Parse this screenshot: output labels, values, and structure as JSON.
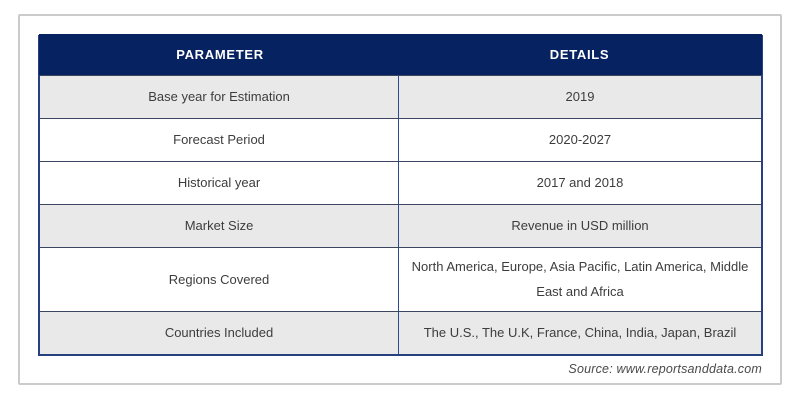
{
  "table": {
    "headers": [
      "PARAMETER",
      "DETAILS"
    ],
    "rows": [
      {
        "parameter": "Base year for Estimation",
        "details": "2019",
        "shaded": true
      },
      {
        "parameter": "Forecast Period",
        "details": "2020-2027",
        "shaded": false
      },
      {
        "parameter": "Historical year",
        "details": "2017 and 2018",
        "shaded": false
      },
      {
        "parameter": "Market Size",
        "details": "Revenue in USD million",
        "shaded": true
      },
      {
        "parameter": "Regions Covered",
        "details": "North America, Europe, Asia Pacific, Latin America, Middle East and Africa",
        "shaded": false
      },
      {
        "parameter": "Countries Included",
        "details": "The U.S., The  U.K, France, China, India, Japan, Brazil",
        "shaded": true
      }
    ]
  },
  "source": {
    "label": "Source: www.reportsanddata.com"
  },
  "colors": {
    "header_bg": "#062260",
    "header_text": "#ffffff",
    "shaded_row_bg": "#e9e9e9",
    "row_bg": "#ffffff",
    "row_border": "#3c4660",
    "table_border": "#27417e",
    "frame_border": "#cbcbcb",
    "cell_text": "#3d3d3d",
    "source_text": "#4a4a4a"
  },
  "chart_data": {
    "type": "table",
    "title": "",
    "columns": [
      "PARAMETER",
      "DETAILS"
    ],
    "rows": [
      [
        "Base year for Estimation",
        "2019"
      ],
      [
        "Forecast Period",
        "2020-2027"
      ],
      [
        "Historical year",
        "2017 and 2018"
      ],
      [
        "Market Size",
        "Revenue in USD million"
      ],
      [
        "Regions Covered",
        "North America, Europe, Asia Pacific, Latin America, Middle East and Africa"
      ],
      [
        "Countries Included",
        "The U.S., The  U.K, France, China, India, Japan, Brazil"
      ]
    ],
    "source": "Source: www.reportsanddata.com"
  }
}
